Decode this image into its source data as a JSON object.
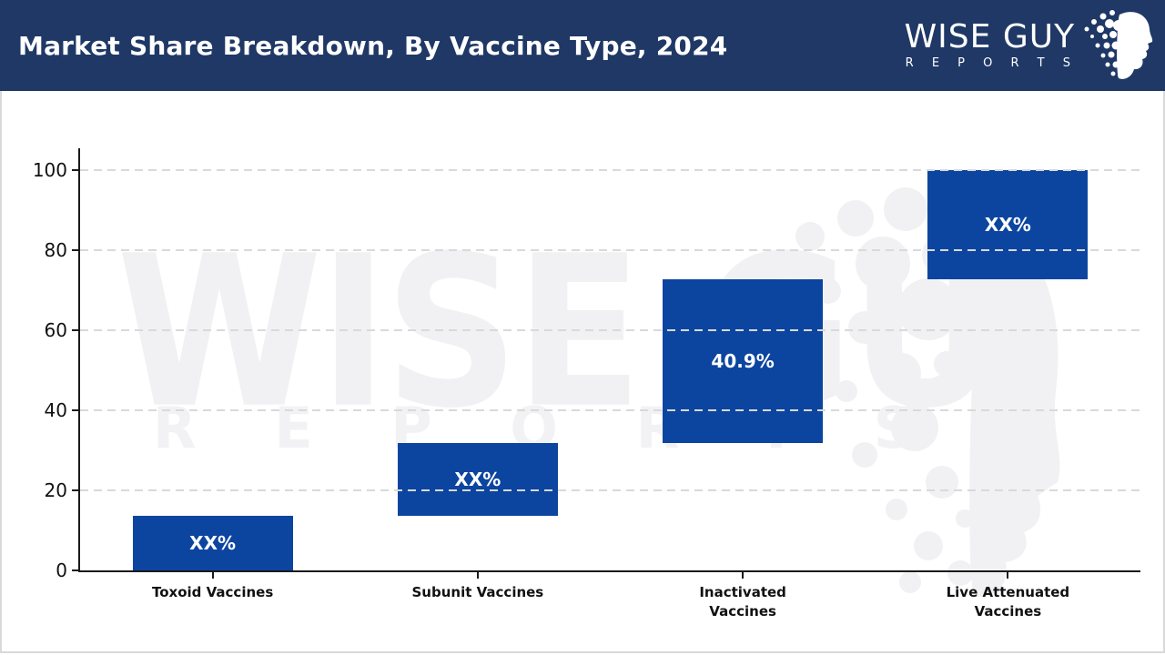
{
  "header": {
    "title": "Market Share Breakdown, By Vaccine Type, 2024",
    "logo": {
      "name": "WISE GUY",
      "sub": "R E P O R T S",
      "icon": "dotted-head-profile-icon"
    }
  },
  "watermark": {
    "wordmark": "WISE GU",
    "sub": "R E P O R T S",
    "icon": "dotted-head-profile-watermark"
  },
  "colors": {
    "header_bg": "#1f3866",
    "bar": "#0c45a0",
    "grid": "#d9d9d9",
    "axis": "#1a1a1a",
    "bar_label": "#ffffff",
    "watermark": "#f1f1f4"
  },
  "chart_data": {
    "type": "bar",
    "subtype": "waterfall",
    "title": "Market Share Breakdown, By Vaccine Type, 2024",
    "xlabel": "",
    "ylabel": "",
    "ylim": [
      0,
      100
    ],
    "yticks": [
      0,
      20,
      40,
      60,
      80,
      100
    ],
    "grid": "horizontal-dashed",
    "legend": "none",
    "categories": [
      "Toxoid Vaccines",
      "Subunit Vaccines",
      "Inactivated Vaccines",
      "Live Attenuated Vaccines"
    ],
    "bars": [
      {
        "category": "Toxoid Vaccines",
        "tick_lines": [
          "Toxoid Vaccines"
        ],
        "start": 0,
        "end": 13.6,
        "value": 13.6,
        "label": "XX%"
      },
      {
        "category": "Subunit Vaccines",
        "tick_lines": [
          "Subunit Vaccines"
        ],
        "start": 13.6,
        "end": 31.8,
        "value": 18.2,
        "label": "XX%"
      },
      {
        "category": "Inactivated Vaccines",
        "tick_lines": [
          "Inactivated",
          "Vaccines"
        ],
        "start": 31.8,
        "end": 72.7,
        "value": 40.9,
        "label": "40.9%"
      },
      {
        "category": "Live Attenuated Vaccines",
        "tick_lines": [
          "Live Attenuated",
          "Vaccines"
        ],
        "start": 72.7,
        "end": 100,
        "value": 27.3,
        "label": "XX%"
      }
    ]
  }
}
